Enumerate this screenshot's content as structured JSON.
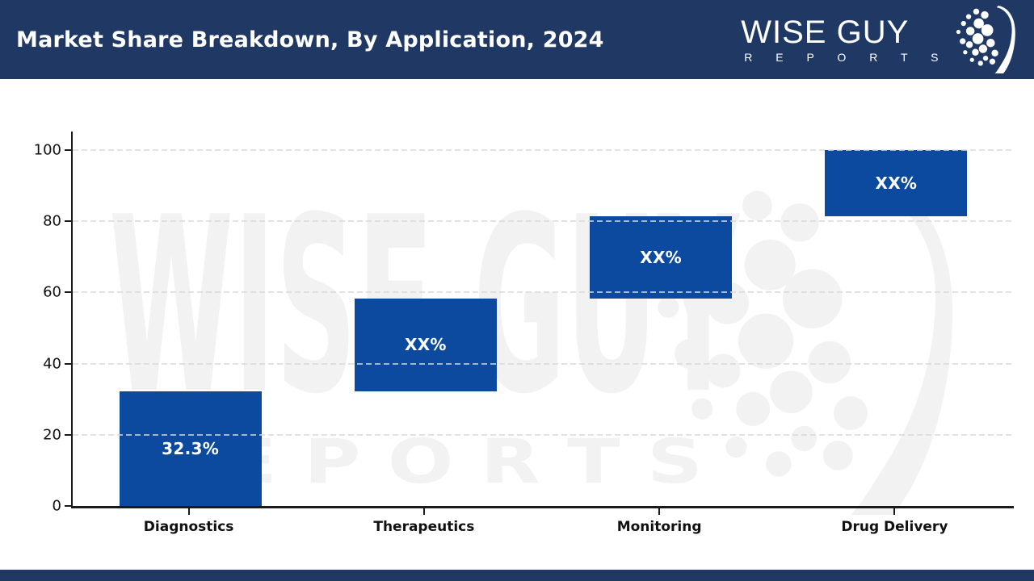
{
  "header": {
    "title": "Market Share Breakdown, By Application, 2024",
    "logo": {
      "wordmark": "WISE GUY",
      "subtext": "REPORTS",
      "subtext_spaced": "R E P O R T S"
    }
  },
  "watermark": {
    "line1": "WISE GUY",
    "line2": "R E P O R T S"
  },
  "chart_data": {
    "type": "bar",
    "subtype": "floating-waterfall",
    "title": "Market Share Breakdown, By Application, 2024",
    "categories": [
      "Diagnostics",
      "Therapeutics",
      "Monitoring",
      "Drug Delivery"
    ],
    "series": [
      {
        "name": "Market Share (%)",
        "segments": [
          {
            "category": "Diagnostics",
            "start": 0,
            "end": 32.3,
            "label": "32.3%"
          },
          {
            "category": "Therapeutics",
            "start": 32.3,
            "end": 58.3,
            "label": "XX%"
          },
          {
            "category": "Monitoring",
            "start": 58.3,
            "end": 81.5,
            "label": "XX%"
          },
          {
            "category": "Drug Delivery",
            "start": 81.5,
            "end": 100,
            "label": "XX%"
          }
        ]
      }
    ],
    "xlabel": "",
    "ylabel": "",
    "ylim": [
      0,
      100
    ],
    "yticks": [
      0,
      20,
      40,
      60,
      80,
      100
    ],
    "grid": "horizontal-dashed",
    "legend": "none",
    "bar_color": "#0b4a9e",
    "bar_label_color": "#ffffff",
    "axis_color": "#1a1a1a",
    "grid_color": "#d9d9d9"
  },
  "colors": {
    "header_bg": "#1f3864",
    "footer_bg": "#1f3864",
    "watermark": "#f2f2f2"
  }
}
